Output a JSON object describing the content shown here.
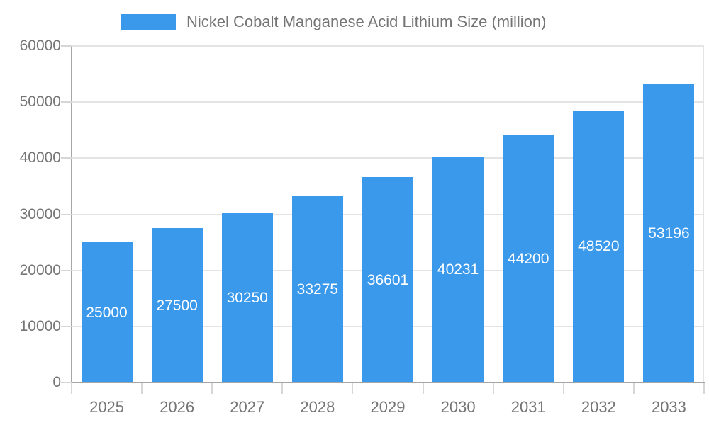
{
  "chart_data": {
    "type": "bar",
    "title": "Nickel Cobalt Manganese Acid Lithium Size (million)",
    "categories": [
      "2025",
      "2026",
      "2027",
      "2028",
      "2029",
      "2030",
      "2031",
      "2032",
      "2033"
    ],
    "values": [
      25000,
      27500,
      30250,
      33275,
      36601,
      40231,
      44200,
      48520,
      53196
    ],
    "xlabel": "",
    "ylabel": "",
    "ylim": [
      0,
      60000
    ],
    "yticks": [
      0,
      10000,
      20000,
      30000,
      40000,
      50000,
      60000
    ],
    "grid": true,
    "legend_position": "top",
    "value_labels": "inside-center",
    "colors": {
      "bar": "#3b99ec",
      "text": "#757575",
      "grid": "#e4e4e4",
      "tick": "#d6d6d6",
      "axis": "#a6a6a6",
      "value_label": "#ffffff",
      "background": "#ffffff"
    }
  }
}
